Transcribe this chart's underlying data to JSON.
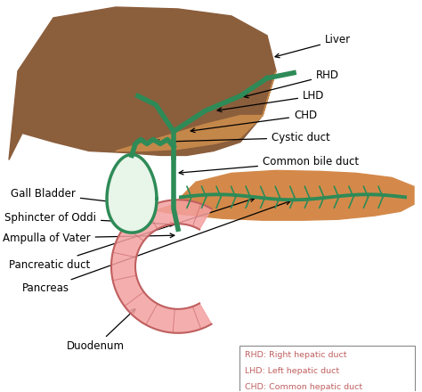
{
  "bg_color": "#ffffff",
  "liver_color": "#8B5E3C",
  "liver_shadow_color": "#C4874A",
  "pancreas_color": "#D4894A",
  "gallbladder_color": "#e8f5e9",
  "gallbladder_outline": "#2e8b57",
  "duct_color": "#2e8b57",
  "duodenum_color": "#f4a0a0",
  "duodenum_outline": "#c06060",
  "legend_box_color": "#c06060",
  "legend_lines": [
    "RHD: Right hepatic duct",
    "LHD: Left hepatic duct",
    "CHD: Common hepatic duct"
  ]
}
